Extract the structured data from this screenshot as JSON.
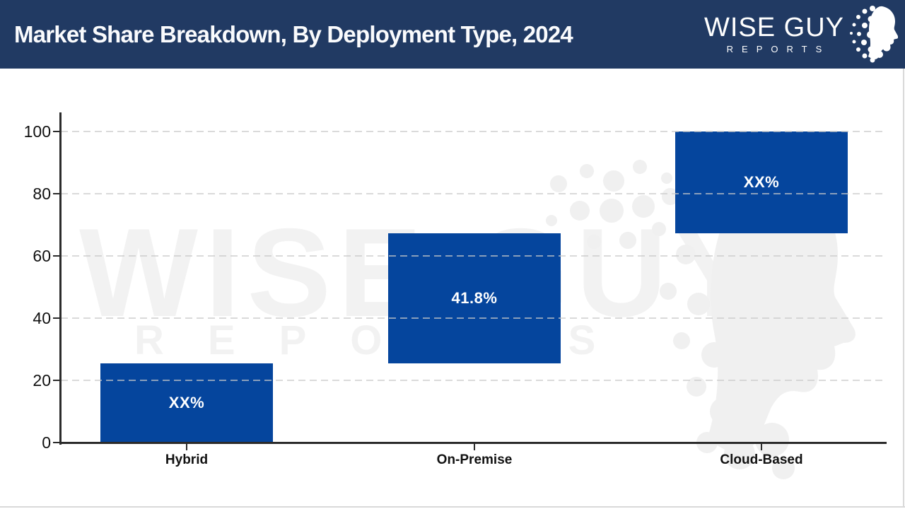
{
  "header": {
    "title": "Market Share Breakdown, By Deployment Type, 2024",
    "logo": {
      "brand": "WISE GUY",
      "tagline": "REPORTS"
    }
  },
  "watermark": {
    "brand": "WISE GUY",
    "tagline": "REPORTS"
  },
  "chart_data": {
    "type": "bar",
    "subtype": "floating-segmented-waterfall",
    "title": "Market Share Breakdown, By Deployment Type, 2024",
    "categories": [
      "Hybrid",
      "On-Premise",
      "Cloud-Based"
    ],
    "segments": [
      {
        "category": "Hybrid",
        "start": 0,
        "end": 25.5,
        "value": 25.5,
        "label": "XX%"
      },
      {
        "category": "On-Premise",
        "start": 25.5,
        "end": 67.3,
        "value": 41.8,
        "label": "41.8%"
      },
      {
        "category": "Cloud-Based",
        "start": 67.3,
        "end": 100,
        "value": 32.7,
        "label": "XX%"
      }
    ],
    "yticks": [
      0,
      20,
      40,
      60,
      80,
      100
    ],
    "ytick_labels": [
      "0",
      "20",
      "40",
      "60",
      "80",
      "100"
    ],
    "ylim": [
      0,
      105
    ],
    "xlabel": "",
    "ylabel": "",
    "grid": "horizontal-dashed",
    "legend": "none",
    "bar_color": "#05459d",
    "value_label_color": "#ffffff"
  },
  "colors": {
    "header_bg": "#213a63",
    "header_text": "#fafbfd",
    "bar": "#05459d",
    "axis": "#2b2b2b",
    "grid": "#c9c9c9",
    "watermark": "#f2f2f2",
    "page_bg": "#ffffff"
  }
}
